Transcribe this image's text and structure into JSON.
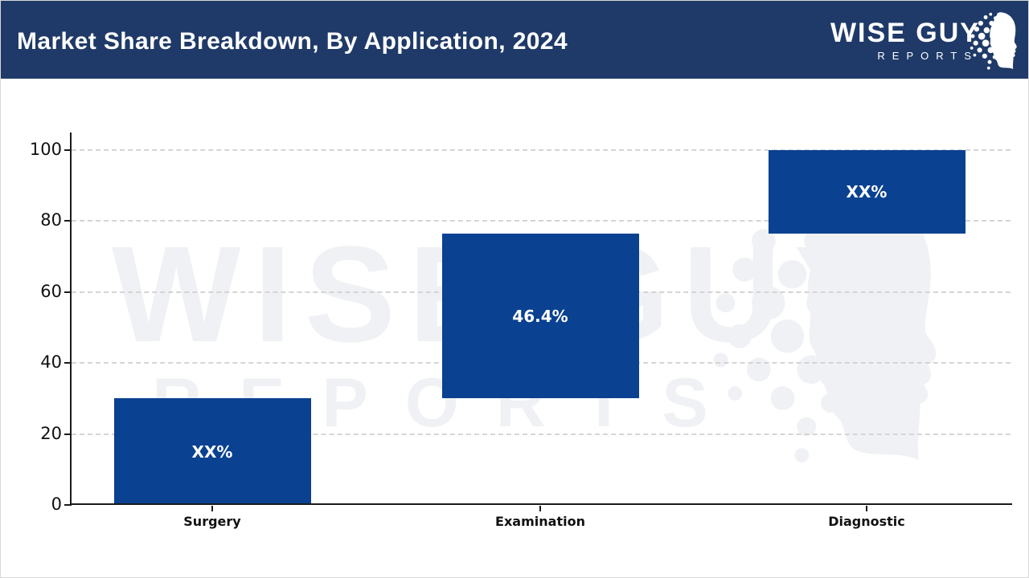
{
  "header": {
    "title": "Market Share Breakdown, By Application, 2024",
    "brand": {
      "line1": "WISE GUY",
      "line2": "REPORTS"
    }
  },
  "watermark": {
    "line1": "WISE GUY",
    "line2": "REPORTS"
  },
  "chart_data": {
    "type": "bar",
    "subtype": "waterfall",
    "title": "Market Share Breakdown, By Application, 2024",
    "categories": [
      "Surgery",
      "Examination",
      "Diagnostic"
    ],
    "segments": [
      {
        "category": "Surgery",
        "start": 0,
        "end": 30,
        "label": "XX%"
      },
      {
        "category": "Examination",
        "start": 30,
        "end": 76.4,
        "label": "46.4%"
      },
      {
        "category": "Diagnostic",
        "start": 76.4,
        "end": 100,
        "label": "XX%"
      }
    ],
    "ylim": [
      0,
      100
    ],
    "yticks": [
      0,
      20,
      40,
      60,
      80,
      100
    ],
    "grid": "horizontal dashed",
    "legend": "none",
    "bar_color": "#0a4191",
    "bar_label_color": "#ffffff",
    "axis_color": "#1a1a1a",
    "grid_color": "#d4d4d4"
  },
  "colors": {
    "header_bg": "#1f3a68",
    "page_bg": "#ffffff",
    "watermark": "#eff1f4",
    "border": "#d9d9d9"
  }
}
